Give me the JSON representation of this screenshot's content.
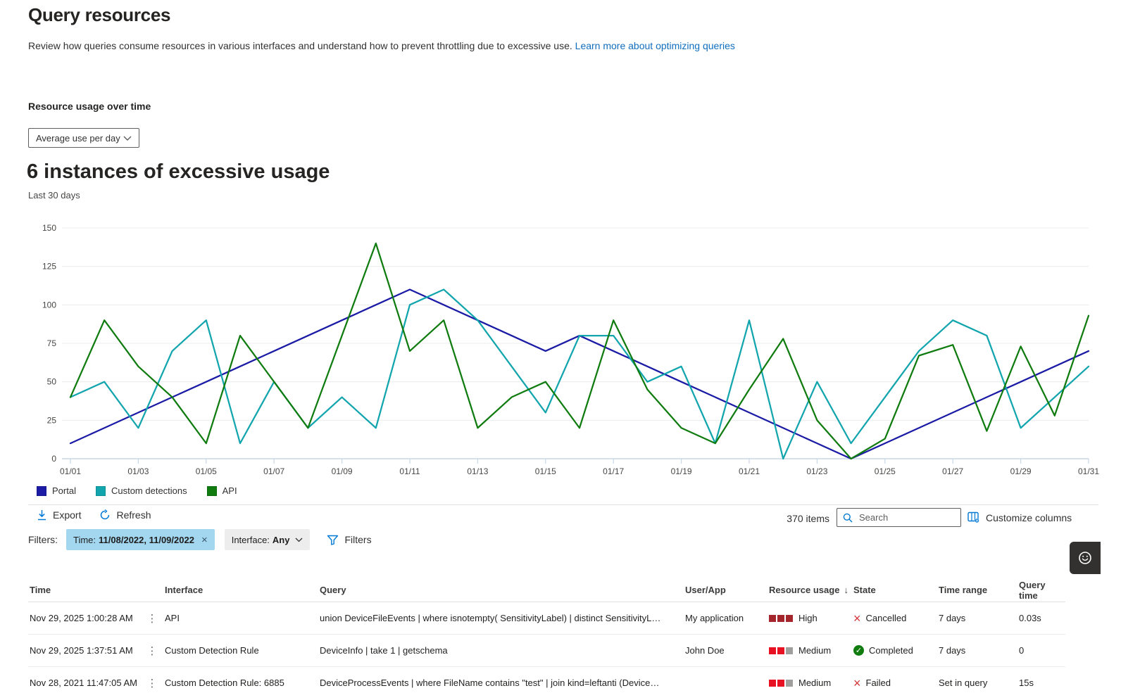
{
  "page": {
    "title": "Query resources",
    "description": "Review how queries consume resources in various interfaces and understand how to prevent throttling due to excessive use.",
    "learn_more": "Learn more about optimizing queries"
  },
  "usage_section": {
    "label": "Resource usage over time",
    "dropdown_value": "Average use per day",
    "headline": "6 instances of excessive usage",
    "subtitle": "Last 30 days"
  },
  "chart_data": {
    "type": "line",
    "xlabel": "",
    "ylabel": "",
    "ylim": [
      0,
      150
    ],
    "yticks": [
      0,
      25,
      50,
      75,
      100,
      125,
      150
    ],
    "x_days": 31,
    "xtick_labels": [
      "01/01",
      "01/03",
      "01/05",
      "01/07",
      "01/09",
      "01/11",
      "01/13",
      "01/15",
      "01/17",
      "01/19",
      "01/21",
      "01/23",
      "01/25",
      "01/27",
      "01/29",
      "01/31"
    ],
    "grid": true,
    "legend_position": "bottom",
    "series": [
      {
        "name": "Portal",
        "color": "#1b1ba6",
        "values": [
          10,
          20,
          30,
          40,
          50,
          60,
          70,
          80,
          90,
          100,
          110,
          100,
          90,
          80,
          70,
          80,
          70,
          60,
          50,
          40,
          30,
          20,
          10,
          0,
          10,
          20,
          30,
          40,
          50,
          60,
          70
        ]
      },
      {
        "name": "Custom detections",
        "color": "#12a5ad",
        "values": [
          40,
          50,
          20,
          70,
          90,
          10,
          50,
          20,
          40,
          20,
          100,
          110,
          90,
          60,
          30,
          80,
          80,
          50,
          60,
          10,
          90,
          0,
          50,
          10,
          40,
          70,
          90,
          80,
          20,
          40,
          60
        ]
      },
      {
        "name": "API",
        "color": "#107c10",
        "values": [
          40,
          90,
          60,
          40,
          10,
          80,
          50,
          20,
          80,
          140,
          70,
          90,
          20,
          40,
          50,
          20,
          90,
          45,
          20,
          10,
          45,
          78,
          25,
          0,
          13,
          67,
          74,
          18,
          73,
          28,
          93
        ]
      }
    ]
  },
  "toolbar": {
    "export_label": "Export",
    "refresh_label": "Refresh",
    "items_count": "370 items",
    "search_placeholder": "Search",
    "customize_label": "Customize columns"
  },
  "filters": {
    "label": "Filters:",
    "time_prefix": "Time:",
    "time_value": "11/08/2022, 11/09/2022",
    "interface_prefix": "Interface:",
    "interface_value": "Any",
    "filters_button": "Filters"
  },
  "table": {
    "columns": {
      "time": "Time",
      "interface": "Interface",
      "query": "Query",
      "user": "User/App",
      "usage": "Resource usage",
      "state": "State",
      "range": "Time range",
      "qtime": "Query time"
    },
    "sort_arrow": "↓",
    "rows": [
      {
        "time": "Nov 29, 2025 1:00:28 AM",
        "interface": "API",
        "query": "union DeviceFileEvents | where isnotempty( SensitivityLabel) | distinct SensitivityL…",
        "user": "My application",
        "usage": "High",
        "usage_colors": [
          "#a4262c",
          "#a4262c",
          "#a4262c"
        ],
        "state": "Cancelled",
        "state_kind": "cancelled",
        "range": "7 days",
        "qtime": "0.03s"
      },
      {
        "time": "Nov 29, 2025 1:37:51 AM",
        "interface": "Custom Detection Rule",
        "query": "DeviceInfo | take 1 | getschema",
        "user": "John Doe",
        "usage": "Medium",
        "usage_colors": [
          "#e81123",
          "#e81123",
          "#a19f9d"
        ],
        "state": "Completed",
        "state_kind": "completed",
        "range": "7 days",
        "qtime": "0"
      },
      {
        "time": "Nov 28, 2021 11:47:05 AM",
        "interface": "Custom Detection Rule: 6885",
        "query": "DeviceProcessEvents | where FileName contains \"test\" | join kind=leftanti (Device…",
        "user": "",
        "usage": "Medium",
        "usage_colors": [
          "#e81123",
          "#e81123",
          "#a19f9d"
        ],
        "state": "Failed",
        "state_kind": "failed",
        "range": "Set in query",
        "qtime": "15s"
      }
    ]
  }
}
